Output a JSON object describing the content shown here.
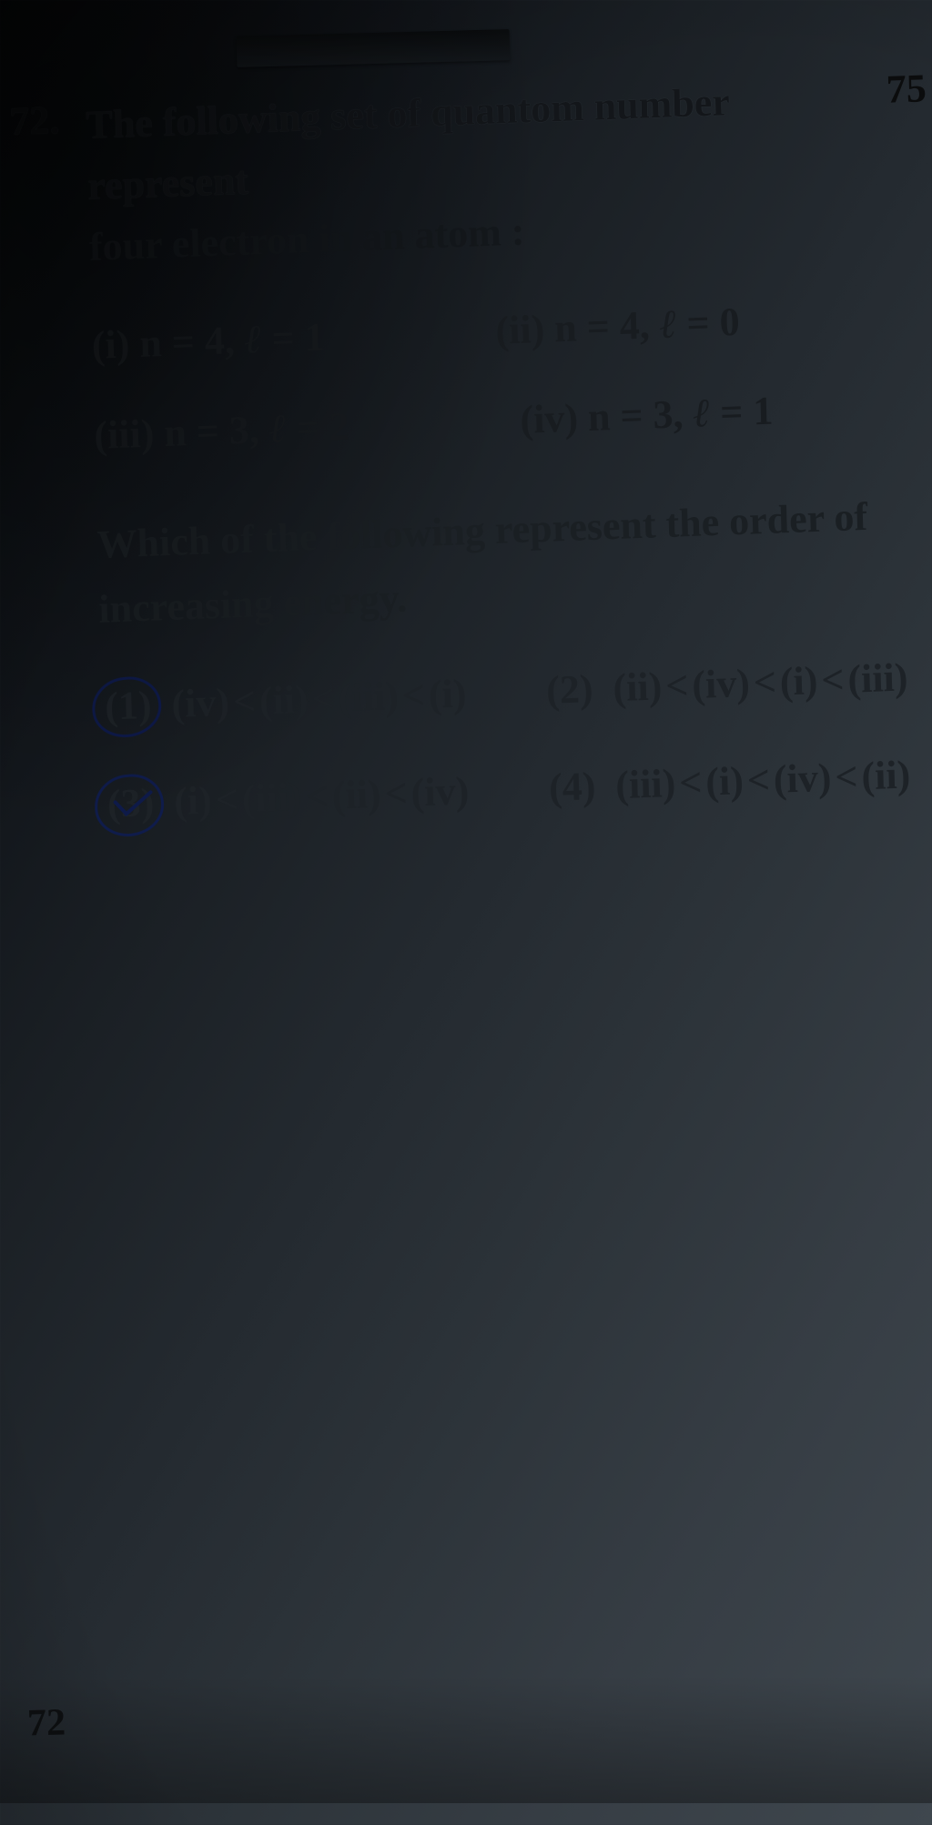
{
  "question": {
    "number": "72.",
    "stem_line1": "The following set of quantom number represent",
    "stem_line2": "four electron in an atom :",
    "cut_right": "75",
    "subparts": [
      {
        "id": "(i)",
        "text": "n = 4, ℓ = 1"
      },
      {
        "id": "(ii)",
        "text": "n = 4, ℓ = 0"
      },
      {
        "id": "(iii)",
        "text": "n = 3, ℓ = 2"
      },
      {
        "id": "(iv)",
        "text": "n = 3, ℓ = 1"
      }
    ],
    "ask_line1": "Which of the following represent the order of",
    "ask_line2": "increasing energy.",
    "options": [
      {
        "num": "(1)",
        "seq": "(iv) < (ii) < (iii) < (i)",
        "circled": true,
        "ticked": false
      },
      {
        "num": "(2)",
        "seq": "(ii) < (iv) < (i) < (iii)",
        "circled": false,
        "ticked": false
      },
      {
        "num": "(3)",
        "seq": "(i) < (iii) < (ii) < (iv)",
        "circled": true,
        "ticked": true
      },
      {
        "num": "(4)",
        "seq": "(iii) < (i) < (iv) < (ii)",
        "circled": false,
        "ticked": false
      }
    ]
  },
  "next_number_cut": "72",
  "colors": {
    "ink": "#13161a",
    "pen_blue": "#0e1a4a",
    "bg_dark": "#0a0d10",
    "bg_light": "#3f474e"
  },
  "fontsize_pt": 33
}
